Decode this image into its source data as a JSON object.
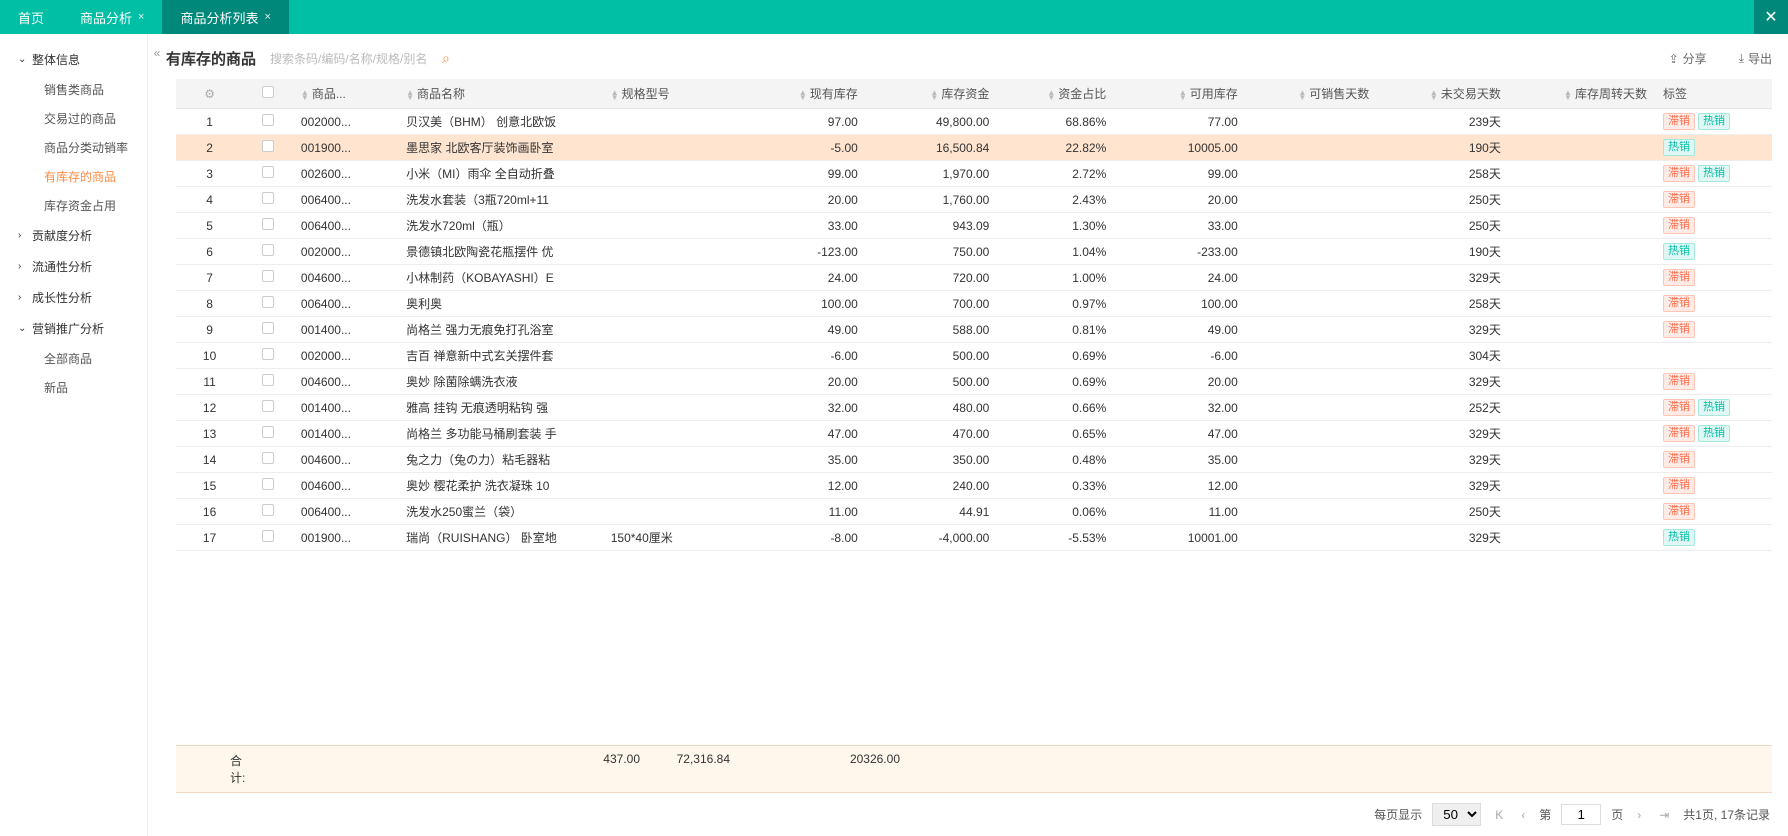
{
  "tabs": [
    {
      "label": "首页",
      "closable": false,
      "active": false
    },
    {
      "label": "商品分析",
      "closable": true,
      "active": false
    },
    {
      "label": "商品分析列表",
      "closable": true,
      "active": true
    }
  ],
  "sidebar": {
    "groups": [
      {
        "label": "整体信息",
        "expanded": true,
        "items": [
          {
            "label": "销售类商品"
          },
          {
            "label": "交易过的商品"
          },
          {
            "label": "商品分类动销率"
          },
          {
            "label": "有库存的商品",
            "active": true
          },
          {
            "label": "库存资金占用"
          }
        ]
      },
      {
        "label": "贡献度分析",
        "expanded": false,
        "items": []
      },
      {
        "label": "流通性分析",
        "expanded": false,
        "items": []
      },
      {
        "label": "成长性分析",
        "expanded": false,
        "items": []
      },
      {
        "label": "营销推广分析",
        "expanded": true,
        "items": [
          {
            "label": "全部商品"
          },
          {
            "label": "新品"
          }
        ]
      }
    ]
  },
  "page": {
    "title": "有库存的商品",
    "search_placeholder": "搜索条码/编码/名称/规格/别名",
    "share_label": "分享",
    "export_label": "导出"
  },
  "table": {
    "columns": {
      "idx": "",
      "code": "商品...",
      "name": "商品名称",
      "spec": "规格型号",
      "stock": "现有库存",
      "fund": "库存资金",
      "pct": "资金占比",
      "avail": "可用库存",
      "saledays": "可销售天数",
      "notrade": "未交易天数",
      "turn": "库存周转天数",
      "tags": "标签"
    },
    "rows": [
      {
        "idx": 1,
        "code": "002000...",
        "name": "贝汉美（BHM） 创意北欧饭",
        "spec": "",
        "stock": "97.00",
        "fund": "49,800.00",
        "pct": "68.86%",
        "avail": "77.00",
        "saledays": "",
        "notrade": "239天",
        "turn": "",
        "tags": [
          "slow",
          "hot"
        ]
      },
      {
        "idx": 2,
        "code": "001900...",
        "name": "墨思家 北欧客厅装饰画卧室",
        "spec": "",
        "stock": "-5.00",
        "fund": "16,500.84",
        "pct": "22.82%",
        "avail": "10005.00",
        "saledays": "",
        "notrade": "190天",
        "turn": "",
        "tags": [
          "hot"
        ],
        "hl": true
      },
      {
        "idx": 3,
        "code": "002600...",
        "name": "小米（MI）雨伞 全自动折叠",
        "spec": "",
        "stock": "99.00",
        "fund": "1,970.00",
        "pct": "2.72%",
        "avail": "99.00",
        "saledays": "",
        "notrade": "258天",
        "turn": "",
        "tags": [
          "slow",
          "hot"
        ]
      },
      {
        "idx": 4,
        "code": "006400...",
        "name": "洗发水套装（3瓶720ml+11",
        "spec": "",
        "stock": "20.00",
        "fund": "1,760.00",
        "pct": "2.43%",
        "avail": "20.00",
        "saledays": "",
        "notrade": "250天",
        "turn": "",
        "tags": [
          "slow"
        ]
      },
      {
        "idx": 5,
        "code": "006400...",
        "name": "洗发水720ml（瓶）",
        "spec": "",
        "stock": "33.00",
        "fund": "943.09",
        "pct": "1.30%",
        "avail": "33.00",
        "saledays": "",
        "notrade": "250天",
        "turn": "",
        "tags": [
          "slow"
        ]
      },
      {
        "idx": 6,
        "code": "002000...",
        "name": "景德镇北欧陶瓷花瓶摆件 优",
        "spec": "",
        "stock": "-123.00",
        "fund": "750.00",
        "pct": "1.04%",
        "avail": "-233.00",
        "saledays": "",
        "notrade": "190天",
        "turn": "",
        "tags": [
          "hot"
        ]
      },
      {
        "idx": 7,
        "code": "004600...",
        "name": "小林制药（KOBAYASHI）E",
        "spec": "",
        "stock": "24.00",
        "fund": "720.00",
        "pct": "1.00%",
        "avail": "24.00",
        "saledays": "",
        "notrade": "329天",
        "turn": "",
        "tags": [
          "slow"
        ]
      },
      {
        "idx": 8,
        "code": "006400...",
        "name": "奥利奥",
        "spec": "",
        "stock": "100.00",
        "fund": "700.00",
        "pct": "0.97%",
        "avail": "100.00",
        "saledays": "",
        "notrade": "258天",
        "turn": "",
        "tags": [
          "slow"
        ]
      },
      {
        "idx": 9,
        "code": "001400...",
        "name": "尚格兰 强力无痕免打孔浴室",
        "spec": "",
        "stock": "49.00",
        "fund": "588.00",
        "pct": "0.81%",
        "avail": "49.00",
        "saledays": "",
        "notrade": "329天",
        "turn": "",
        "tags": [
          "slow"
        ]
      },
      {
        "idx": 10,
        "code": "002000...",
        "name": "吉百 禅意新中式玄关摆件套",
        "spec": "",
        "stock": "-6.00",
        "fund": "500.00",
        "pct": "0.69%",
        "avail": "-6.00",
        "saledays": "",
        "notrade": "304天",
        "turn": "",
        "tags": []
      },
      {
        "idx": 11,
        "code": "004600...",
        "name": "奥妙 除菌除螨洗衣液",
        "spec": "",
        "stock": "20.00",
        "fund": "500.00",
        "pct": "0.69%",
        "avail": "20.00",
        "saledays": "",
        "notrade": "329天",
        "turn": "",
        "tags": [
          "slow"
        ]
      },
      {
        "idx": 12,
        "code": "001400...",
        "name": "雅高 挂钩 无痕透明粘钩 强",
        "spec": "",
        "stock": "32.00",
        "fund": "480.00",
        "pct": "0.66%",
        "avail": "32.00",
        "saledays": "",
        "notrade": "252天",
        "turn": "",
        "tags": [
          "slow",
          "hot"
        ]
      },
      {
        "idx": 13,
        "code": "001400...",
        "name": "尚格兰 多功能马桶刷套装 手",
        "spec": "",
        "stock": "47.00",
        "fund": "470.00",
        "pct": "0.65%",
        "avail": "47.00",
        "saledays": "",
        "notrade": "329天",
        "turn": "",
        "tags": [
          "slow",
          "hot"
        ]
      },
      {
        "idx": 14,
        "code": "004600...",
        "name": "兔之力（兔の力）粘毛器粘",
        "spec": "",
        "stock": "35.00",
        "fund": "350.00",
        "pct": "0.48%",
        "avail": "35.00",
        "saledays": "",
        "notrade": "329天",
        "turn": "",
        "tags": [
          "slow"
        ]
      },
      {
        "idx": 15,
        "code": "004600...",
        "name": "奥妙 樱花柔护 洗衣凝珠 10",
        "spec": "",
        "stock": "12.00",
        "fund": "240.00",
        "pct": "0.33%",
        "avail": "12.00",
        "saledays": "",
        "notrade": "329天",
        "turn": "",
        "tags": [
          "slow"
        ]
      },
      {
        "idx": 16,
        "code": "006400...",
        "name": "洗发水250蜜兰（袋）",
        "spec": "",
        "stock": "11.00",
        "fund": "44.91",
        "pct": "0.06%",
        "avail": "11.00",
        "saledays": "",
        "notrade": "250天",
        "turn": "",
        "tags": [
          "slow"
        ]
      },
      {
        "idx": 17,
        "code": "001900...",
        "name": "瑞尚（RUISHANG） 卧室地",
        "spec": "150*40厘米",
        "stock": "-8.00",
        "fund": "-4,000.00",
        "pct": "-5.53%",
        "avail": "10001.00",
        "saledays": "",
        "notrade": "329天",
        "turn": "",
        "tags": [
          "hot"
        ]
      }
    ],
    "tag_labels": {
      "slow": "滞销",
      "hot": "热销"
    },
    "totals": {
      "label": "合计:",
      "stock": "437.00",
      "fund": "72,316.84",
      "avail": "20326.00"
    }
  },
  "pager": {
    "per_page_label": "每页显示",
    "per_page_value": "50",
    "page_prefix": "第",
    "page_value": "1",
    "page_suffix": "页",
    "summary": "共1页, 17条记录"
  }
}
